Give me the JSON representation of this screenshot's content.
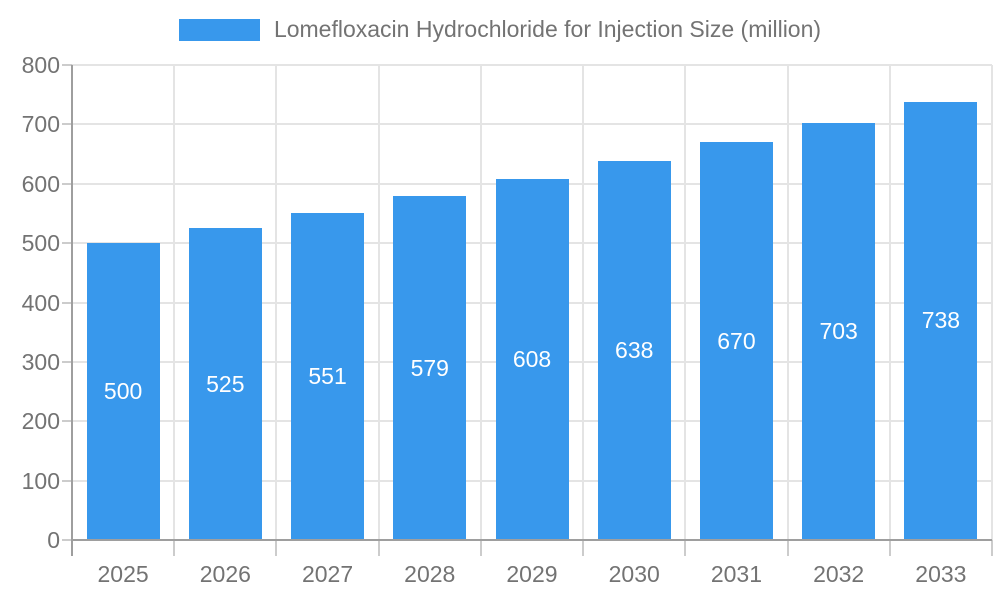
{
  "legend": {
    "items": [
      {
        "label": "Lomefloxacin Hydrochloride for Injection Size (million)",
        "color": "#3898ec"
      }
    ]
  },
  "chart_data": {
    "type": "bar",
    "title": "Lomefloxacin Hydrochloride for Injection Size (million)",
    "categories": [
      "2025",
      "2026",
      "2027",
      "2028",
      "2029",
      "2030",
      "2031",
      "2032",
      "2033"
    ],
    "series": [
      {
        "name": "Lomefloxacin Hydrochloride for Injection Size (million)",
        "values": [
          500,
          525,
          551,
          579,
          608,
          638,
          670,
          703,
          738
        ]
      }
    ],
    "xlabel": "",
    "ylabel": "",
    "ylim": [
      0,
      800
    ],
    "ytick_step": 100,
    "grid": true,
    "legend_position": "top",
    "bar_labels_inside": true,
    "colors": {
      "bar": "#3898ec",
      "bar_label": "#ffffff",
      "axis_text": "#737373",
      "grid_line": "#e4e4e4",
      "tick_line": "#cccccc",
      "axis_line": "#9e9e9e"
    }
  }
}
